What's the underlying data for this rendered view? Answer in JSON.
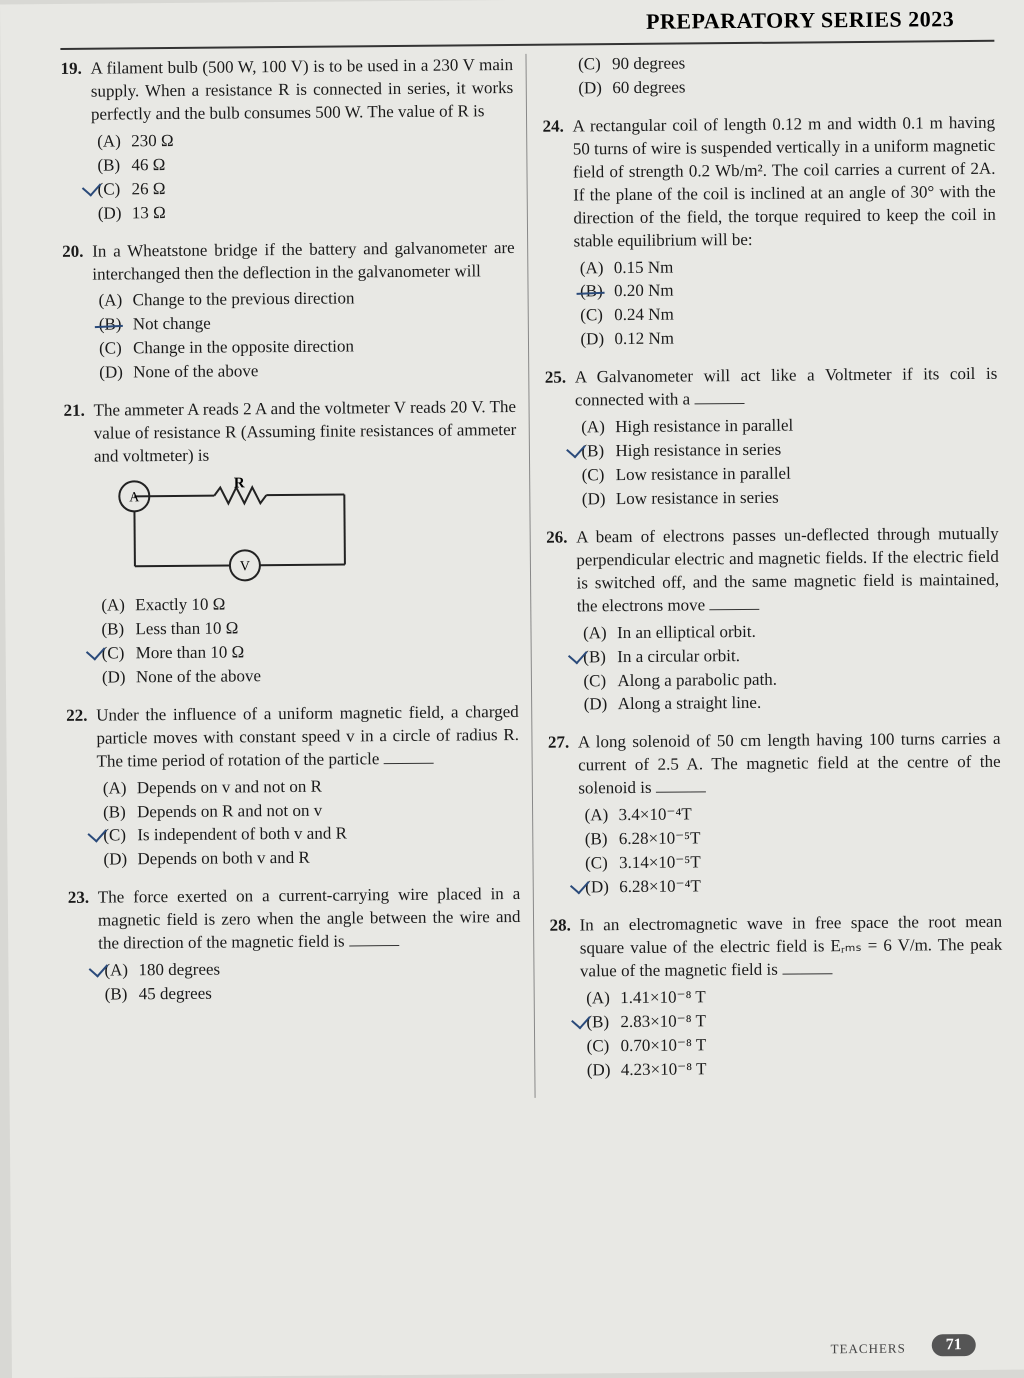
{
  "header": "PREPARATORY SERIES 2023",
  "footer": "TEACHERS",
  "page_number": "71",
  "left_questions": [
    {
      "num": "19.",
      "text": "A filament bulb (500 W, 100 V) is to be used in a 230 V main supply. When a resistance R is connected in series, it works perfectly and the bulb consumes 500 W. The value of R is",
      "options": [
        {
          "label": "(A)",
          "text": "230 Ω"
        },
        {
          "label": "(B)",
          "text": "46 Ω"
        },
        {
          "label": "(C)",
          "text": "26 Ω",
          "tick": true
        },
        {
          "label": "(D)",
          "text": "13 Ω"
        }
      ]
    },
    {
      "num": "20.",
      "text": "In a Wheatstone bridge if the battery and galvanometer are interchanged then the deflection in the galvanometer will",
      "options": [
        {
          "label": "(A)",
          "text": "Change to the previous direction"
        },
        {
          "label": "(B)",
          "text": "Not change",
          "struck": true
        },
        {
          "label": "(C)",
          "text": "Change in the opposite direction"
        },
        {
          "label": "(D)",
          "text": "None of the above"
        }
      ]
    },
    {
      "num": "21.",
      "text": "The ammeter A reads 2 A and the voltmeter V reads 20 V. The value of resistance R (Assuming finite resistances of ammeter and voltmeter) is",
      "circuit": true,
      "options": [
        {
          "label": "(A)",
          "text": "Exactly 10 Ω"
        },
        {
          "label": "(B)",
          "text": "Less than 10 Ω"
        },
        {
          "label": "(C)",
          "text": "More than 10 Ω",
          "tick": true
        },
        {
          "label": "(D)",
          "text": "None of the above"
        }
      ]
    },
    {
      "num": "22.",
      "text": "Under the influence of a uniform magnetic field, a charged particle moves with constant speed v in a circle of radius R. The time period of rotation of the particle ______",
      "options": [
        {
          "label": "(A)",
          "text": "Depends on v and not on R"
        },
        {
          "label": "(B)",
          "text": "Depends on R and not on v"
        },
        {
          "label": "(C)",
          "text": "Is independent of both v and R",
          "tick": true
        },
        {
          "label": "(D)",
          "text": "Depends on both v and R"
        }
      ]
    },
    {
      "num": "23.",
      "text": "The force exerted on a current-carrying wire placed in a magnetic field is zero when the angle between the wire and the direction of the magnetic field is ______",
      "options": [
        {
          "label": "(A)",
          "text": "180 degrees",
          "tick": true
        },
        {
          "label": "(B)",
          "text": "45 degrees"
        }
      ]
    }
  ],
  "right_questions": [
    {
      "num": "",
      "text": "",
      "options": [
        {
          "label": "(C)",
          "text": "90 degrees"
        },
        {
          "label": "(D)",
          "text": "60 degrees"
        }
      ]
    },
    {
      "num": "24.",
      "text": "A rectangular coil of length 0.12 m and width 0.1 m having 50 turns of wire is suspended vertically in a uniform magnetic field of strength 0.2 Wb/m². The coil carries a current of 2A. If the plane of the coil is inclined at an angle of 30° with the direction of the field, the torque required to keep the coil in stable equilibrium will be:",
      "options": [
        {
          "label": "(A)",
          "text": "0.15 Nm"
        },
        {
          "label": "(B)",
          "text": "0.20 Nm",
          "struck": true
        },
        {
          "label": "(C)",
          "text": "0.24 Nm"
        },
        {
          "label": "(D)",
          "text": "0.12 Nm"
        }
      ]
    },
    {
      "num": "25.",
      "text": "A Galvanometer will act like a Voltmeter if its coil is connected with a ______",
      "options": [
        {
          "label": "(A)",
          "text": "High resistance in parallel"
        },
        {
          "label": "(B)",
          "text": "High resistance in series",
          "tick": true
        },
        {
          "label": "(C)",
          "text": "Low resistance in parallel"
        },
        {
          "label": "(D)",
          "text": "Low resistance in series"
        }
      ]
    },
    {
      "num": "26.",
      "text": "A beam of electrons passes un-deflected through mutually perpendicular electric and magnetic fields. If the electric field is switched off, and the same magnetic field is maintained, the electrons move ______",
      "options": [
        {
          "label": "(A)",
          "text": "In an elliptical orbit."
        },
        {
          "label": "(B)",
          "text": "In a circular orbit.",
          "tick": true
        },
        {
          "label": "(C)",
          "text": "Along a parabolic path."
        },
        {
          "label": "(D)",
          "text": "Along a straight line."
        }
      ]
    },
    {
      "num": "27.",
      "text": "A long solenoid of 50 cm length having 100 turns carries a current of 2.5 A. The magnetic field at the centre of the solenoid is ______",
      "options": [
        {
          "label": "(A)",
          "text": "3.4×10⁻⁴T"
        },
        {
          "label": "(B)",
          "text": "6.28×10⁻⁵T"
        },
        {
          "label": "(C)",
          "text": "3.14×10⁻⁵T"
        },
        {
          "label": "(D)",
          "text": "6.28×10⁻⁴T",
          "tick": true
        }
      ]
    },
    {
      "num": "28.",
      "text": "In an electromagnetic wave in free space the root mean square value of the electric field is Eᵣₘₛ = 6 V/m. The peak value of the magnetic field is ______",
      "options": [
        {
          "label": "(A)",
          "text": "1.41×10⁻⁸ T"
        },
        {
          "label": "(B)",
          "text": "2.83×10⁻⁸ T",
          "tick": true
        },
        {
          "label": "(C)",
          "text": "0.70×10⁻⁸ T"
        },
        {
          "label": "(D)",
          "text": "4.23×10⁻⁸ T"
        }
      ]
    }
  ]
}
